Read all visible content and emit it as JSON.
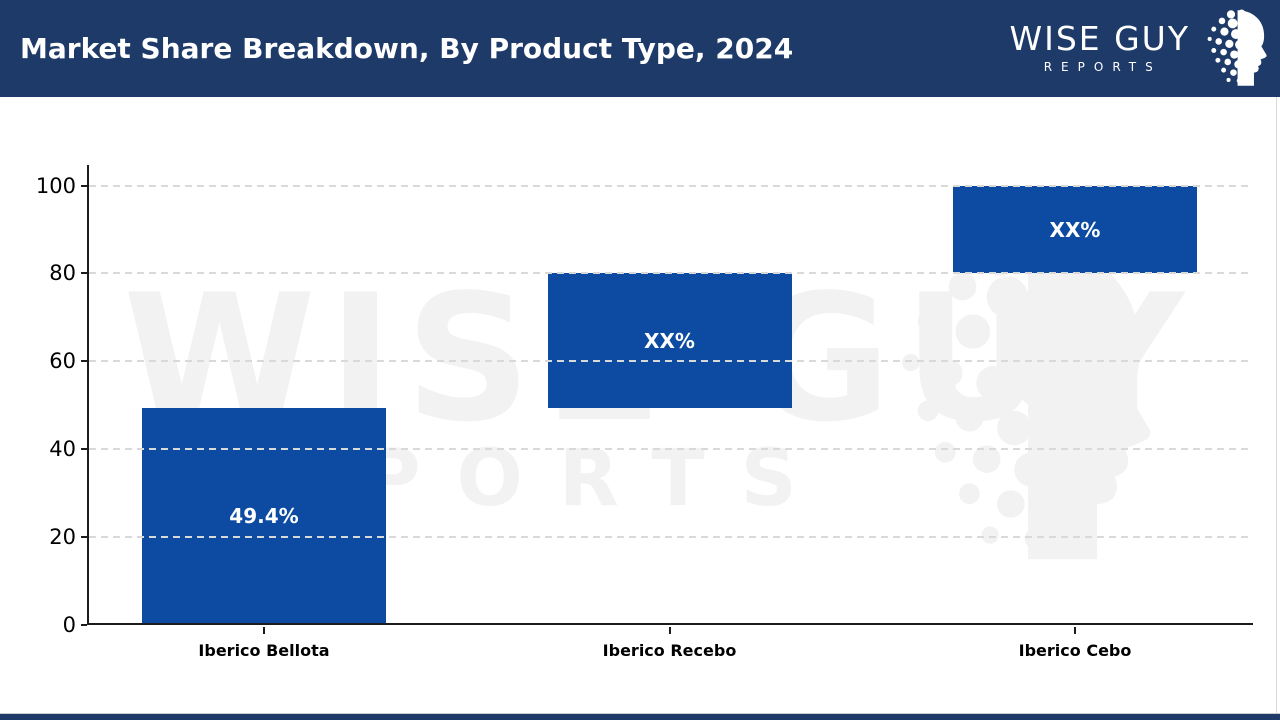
{
  "header": {
    "title": "Market Share Breakdown, By Product Type, 2024",
    "bg": "#1e3a68"
  },
  "logo": {
    "wordmark": "WISE GUY",
    "subtext": "REPORTS"
  },
  "watermark": {
    "line1": "WISE GUY",
    "line2": "REPORTS"
  },
  "footer": {
    "bg": "#1e3a68"
  },
  "chart_data": {
    "type": "bar",
    "variant": "waterfall",
    "title": "Market Share Breakdown, By Product Type, 2024",
    "categories": [
      "Iberico Bellota",
      "Iberico Recebo",
      "Iberico Cebo"
    ],
    "series": [
      {
        "name": "Market share (%)",
        "segments": [
          {
            "from": 0,
            "to": 49.4,
            "label": "49.4%"
          },
          {
            "from": 49.4,
            "to": 80,
            "label": "XX%"
          },
          {
            "from": 80,
            "to": 100,
            "label": "XX%"
          }
        ]
      }
    ],
    "yticks": [
      0,
      20,
      40,
      60,
      80,
      100
    ],
    "ylim": [
      0,
      105
    ],
    "xlabel": "",
    "ylabel": "",
    "grid": "horizontal-dashed",
    "legend": "none",
    "colors": {
      "bar": "#0c4ba1",
      "bar_label": "#ffffff",
      "grid": "#d9d9d9",
      "axis": "#1c1c1c",
      "tick_label": "#000000"
    }
  }
}
